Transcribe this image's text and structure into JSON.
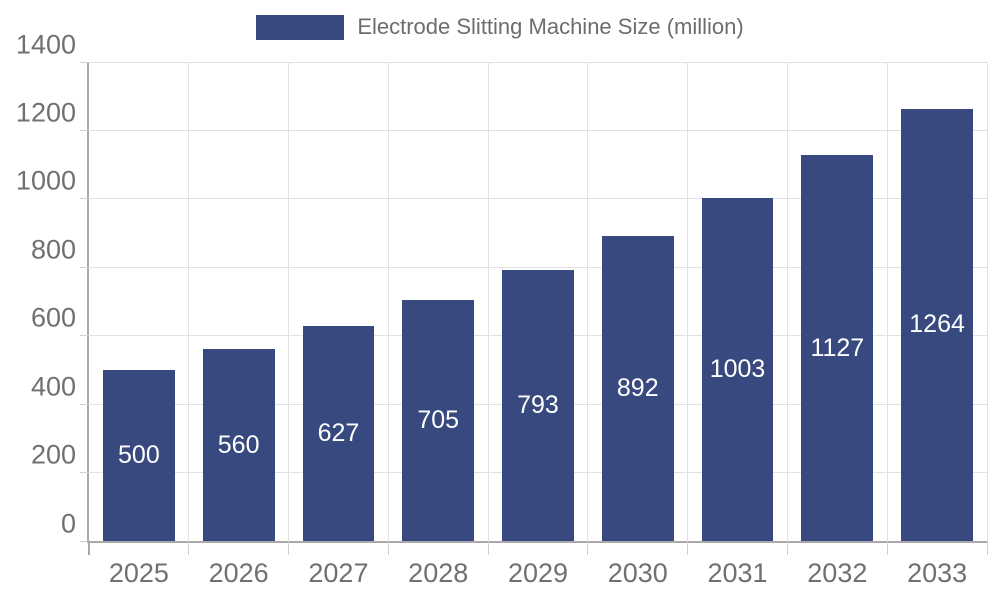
{
  "chart_data": {
    "type": "bar",
    "title": "Electrode Slitting Machine Size (million)",
    "categories": [
      "2025",
      "2026",
      "2027",
      "2028",
      "2029",
      "2030",
      "2031",
      "2032",
      "2033"
    ],
    "values": [
      500,
      560,
      627,
      705,
      793,
      892,
      1003,
      1127,
      1264
    ],
    "value_labels": [
      "500",
      "560",
      "627",
      "705",
      "793",
      "892",
      "1003",
      "1127",
      "1264"
    ],
    "xlabel": "",
    "ylabel": "",
    "ylim": [
      0,
      1400
    ],
    "yticks": [
      0,
      200,
      400,
      600,
      800,
      1000,
      1200,
      1400
    ],
    "grid": true,
    "legend_position": "top-center",
    "colors": {
      "bar": "#37497E",
      "value_text": "#FFFFFF",
      "gridline": "#E1E1E5",
      "axis_line": "#A9A9A9",
      "tick_mark": "#CFCFCF",
      "tick_text": "#707070",
      "legend_text": "#6D6D6D",
      "background": "#FFFFFF"
    }
  }
}
